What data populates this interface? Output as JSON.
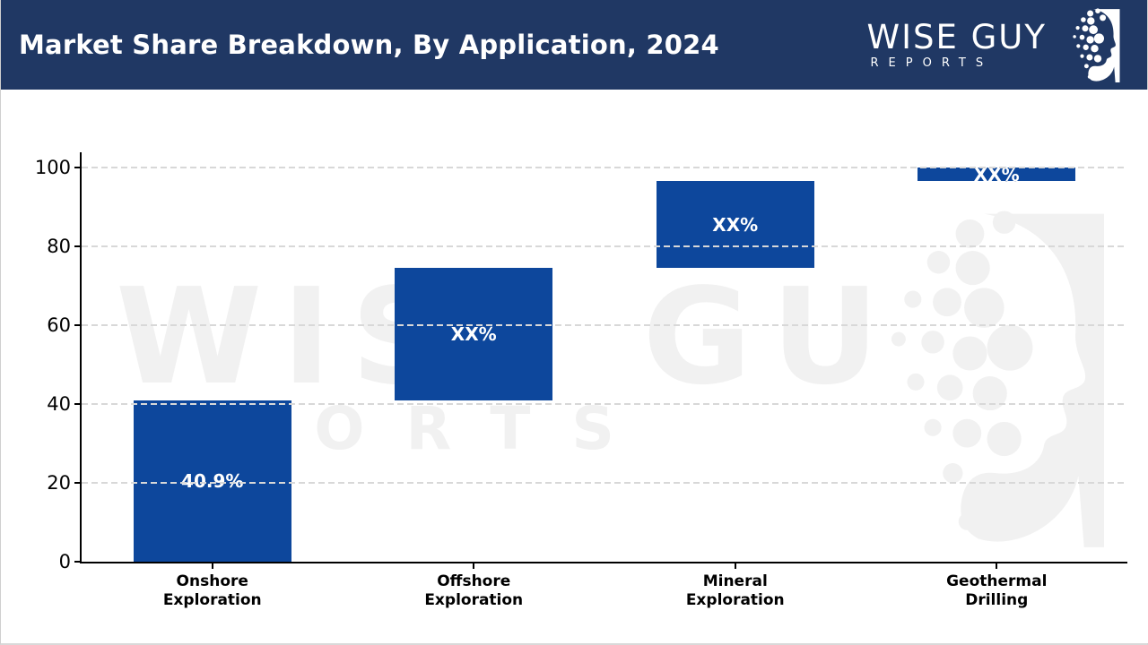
{
  "header": {
    "title": "Market Share Breakdown, By Application, 2024",
    "logo": {
      "line1": "WISE GUY",
      "line2": "REPORTS"
    }
  },
  "watermark": {
    "line1": "WISE GU",
    "line2": "PORTS"
  },
  "colors": {
    "header_bg": "#203864",
    "bar": "#0d479c",
    "bar_label": "#ffffff",
    "bar_label_outside": "#1a3464",
    "grid": "#d8d8d8",
    "axis": "#000000",
    "watermark": "#f1f1f1"
  },
  "chart_data": {
    "type": "bar",
    "subtype": "waterfall",
    "title": "Market Share Breakdown, By Application, 2024",
    "categories": [
      "Onshore\nExploration",
      "Offshore\nExploration",
      "Mineral\nExploration",
      "Geothermal\nDrilling"
    ],
    "bars": [
      {
        "category": "Onshore Exploration",
        "start": 0,
        "end": 40.9,
        "label": "40.9%"
      },
      {
        "category": "Offshore Exploration",
        "start": 40.9,
        "end": 74.6,
        "label": "XX%"
      },
      {
        "category": "Mineral Exploration",
        "start": 74.6,
        "end": 96.5,
        "label": "XX%"
      },
      {
        "category": "Geothermal Drilling",
        "start": 96.5,
        "end": 100,
        "label": "XX%"
      }
    ],
    "ylim": [
      0,
      100
    ],
    "yticks": [
      0,
      20,
      40,
      60,
      80,
      100
    ],
    "xlabel": "",
    "ylabel": "",
    "grid": "horizontal-dashed",
    "legend": "none"
  }
}
